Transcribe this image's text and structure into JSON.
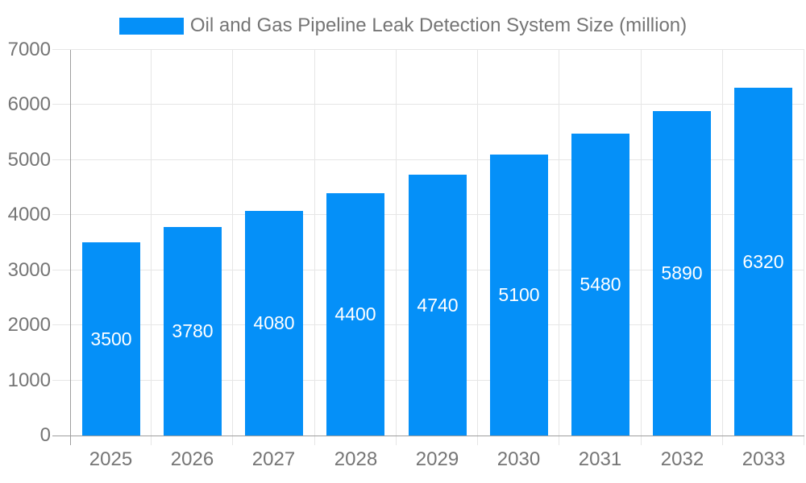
{
  "chart_data": {
    "type": "bar",
    "title": "Oil and Gas Pipeline Leak Detection System Size (million)",
    "categories": [
      "2025",
      "2026",
      "2027",
      "2028",
      "2029",
      "2030",
      "2031",
      "2032",
      "2033"
    ],
    "values": [
      3500,
      3780,
      4080,
      4400,
      4740,
      5100,
      5480,
      5890,
      6320
    ],
    "series": [
      {
        "name": "Oil and Gas Pipeline Leak Detection System Size (million)",
        "values": [
          3500,
          3780,
          4080,
          4400,
          4740,
          5100,
          5480,
          5890,
          6320
        ]
      }
    ],
    "xlabel": "",
    "ylabel": "",
    "ylim": [
      0,
      7000
    ],
    "yticks": [
      0,
      1000,
      2000,
      3000,
      4000,
      5000,
      6000,
      7000
    ],
    "grid": true,
    "legend_position": "top-center",
    "value_labels": "inside-center",
    "bar_color": "#0590f8",
    "value_label_color": "#ffffff",
    "axis_text_color": "#757575",
    "gridline_color": "#e6e6e6",
    "axis_line_color": "#9e9e9e"
  }
}
